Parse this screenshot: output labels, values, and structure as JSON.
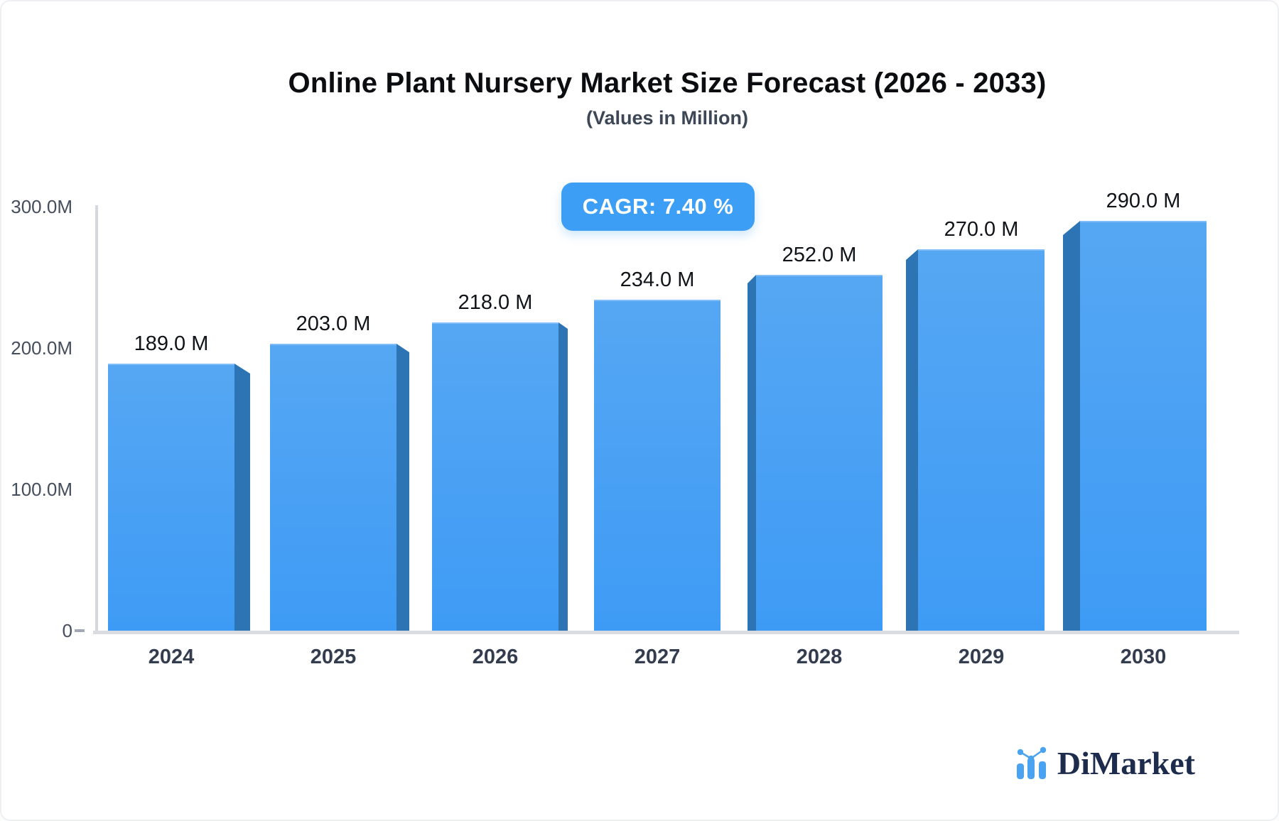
{
  "chart_data": {
    "type": "bar",
    "title": "Online Plant Nursery Market Size Forecast (2026 - 2033)",
    "subtitle": "(Values in Million)",
    "cagr_label": "CAGR: 7.40 %",
    "categories": [
      "2024",
      "2025",
      "2026",
      "2027",
      "2028",
      "2029",
      "2030"
    ],
    "values": [
      189,
      203,
      218,
      234,
      252,
      270,
      290
    ],
    "value_labels": [
      "189.0 M",
      "203.0 M",
      "218.0 M",
      "234.0 M",
      "252.0 M",
      "270.0 M",
      "290.0 M"
    ],
    "xlabel": "",
    "ylabel": "",
    "ylim": [
      0,
      300
    ],
    "yticks": [
      {
        "value": 300,
        "label": "300.0M"
      },
      {
        "value": 200,
        "label": "200.0M"
      },
      {
        "value": 100,
        "label": "100.0M"
      },
      {
        "value": 0,
        "label": "0"
      }
    ],
    "grid": false,
    "legend": false,
    "bar_color": "#3e9bf5",
    "bar_color_light": "#56a7f3",
    "bar_side_color": "#2d74b5",
    "accent": "#3d9ef5"
  },
  "branding": {
    "logo_text": "DiMarket",
    "logo_icon": "mini-bar-chart-logo-icon",
    "logo_text_color": "#1d2c4d",
    "logo_accent": "#4aa3f0"
  }
}
